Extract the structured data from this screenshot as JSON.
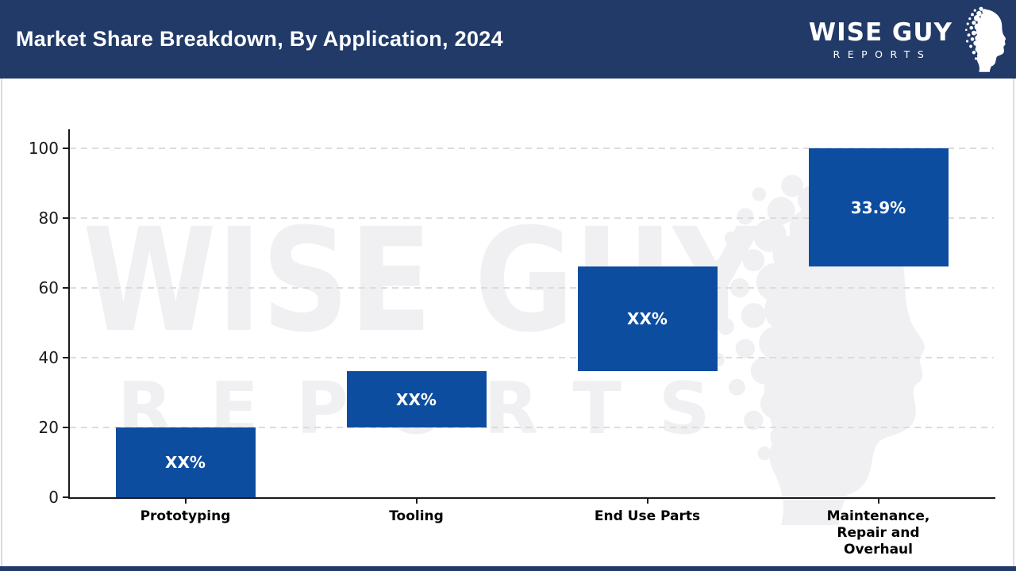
{
  "header": {
    "title": "Market Share Breakdown, By Application, 2024",
    "logo": {
      "brand": "WISE GUY",
      "sub": "REPORTS"
    }
  },
  "watermark": {
    "brand": "WISE GUY",
    "sub": "REPORTS"
  },
  "chart_data": {
    "type": "bar",
    "variant": "waterfall",
    "title": "Market Share Breakdown, By Application, 2024",
    "categories": [
      "Prototyping",
      "Tooling",
      "End Use Parts",
      "Maintenance, Repair and Overhaul"
    ],
    "category_lines": [
      [
        "Prototyping"
      ],
      [
        "Tooling"
      ],
      [
        "End Use Parts"
      ],
      [
        "Maintenance,",
        "Repair and",
        "Overhaul"
      ]
    ],
    "series": [
      {
        "name": "Market Share (%)",
        "segments": [
          {
            "category": "Prototyping",
            "start": 0,
            "end": 20,
            "label": "XX%"
          },
          {
            "category": "Tooling",
            "start": 20,
            "end": 36.1,
            "label": "XX%"
          },
          {
            "category": "End Use Parts",
            "start": 36.1,
            "end": 66.1,
            "label": "XX%"
          },
          {
            "category": "Maintenance, Repair and Overhaul",
            "start": 66.1,
            "end": 100,
            "label": "33.9%"
          }
        ]
      }
    ],
    "yticks": [
      "0",
      "20",
      "40",
      "60",
      "80",
      "100"
    ],
    "ylim": [
      0,
      105.5
    ],
    "xlabel": "",
    "ylabel": "",
    "grid": "horizontal dashed",
    "legend": false,
    "bar_color": "#0d4da0",
    "bar_label_color": "#ffffff",
    "axis_color": "#1a1a1a",
    "grid_color": "#dcdcdc",
    "header_bg_color": "#213a67",
    "watermark_color": "#f0f0f2"
  }
}
